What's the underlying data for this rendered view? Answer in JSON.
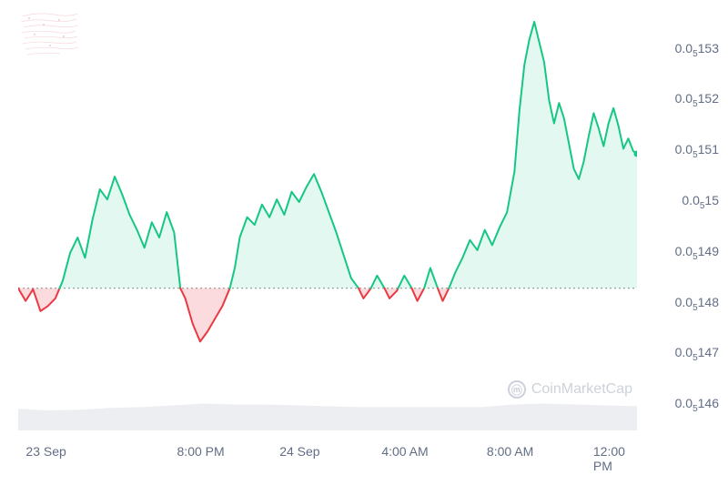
{
  "chart": {
    "type": "area-line",
    "background_color": "#ffffff",
    "above_line_color": "#16c784",
    "above_fill_color": "rgba(22,199,132,0.12)",
    "below_line_color": "#ea3943",
    "below_fill_color": "rgba(234,57,67,0.18)",
    "baseline_color": "#888888",
    "baseline_dash": "2,3",
    "volume_fill_color": "#eceef1",
    "axis_text_color": "#616e85",
    "watermark_color": "#b8bec9",
    "line_width": 2,
    "ylim": [
      145.5,
      153.8
    ],
    "baseline_value": 148.3,
    "y_ticks": [
      {
        "value": 153,
        "label_prefix": "0.0",
        "label_sub": "5",
        "label_suffix": "153"
      },
      {
        "value": 152,
        "label_prefix": "0.0",
        "label_sub": "5",
        "label_suffix": "152"
      },
      {
        "value": 151,
        "label_prefix": "0.0",
        "label_sub": "5",
        "label_suffix": "151"
      },
      {
        "value": 150,
        "label_prefix": "0.0",
        "label_sub": "5",
        "label_suffix": "15"
      },
      {
        "value": 149,
        "label_prefix": "0.0",
        "label_sub": "5",
        "label_suffix": "149"
      },
      {
        "value": 148,
        "label_prefix": "0.0",
        "label_sub": "5",
        "label_suffix": "148"
      },
      {
        "value": 147,
        "label_prefix": "0.0",
        "label_sub": "5",
        "label_suffix": "147"
      },
      {
        "value": 146,
        "label_prefix": "0.0",
        "label_sub": "5",
        "label_suffix": "146"
      }
    ],
    "x_ticks": [
      {
        "t": 0.045,
        "label": "23 Sep"
      },
      {
        "t": 0.295,
        "label": "8:00 PM"
      },
      {
        "t": 0.455,
        "label": "24 Sep"
      },
      {
        "t": 0.625,
        "label": "4:00 AM"
      },
      {
        "t": 0.795,
        "label": "8:00 AM"
      },
      {
        "t": 0.955,
        "label": "12:00 PM"
      }
    ],
    "series": [
      {
        "t": 0.0,
        "v": 148.3
      },
      {
        "t": 0.012,
        "v": 148.05
      },
      {
        "t": 0.024,
        "v": 148.28
      },
      {
        "t": 0.036,
        "v": 147.85
      },
      {
        "t": 0.048,
        "v": 147.95
      },
      {
        "t": 0.06,
        "v": 148.1
      },
      {
        "t": 0.072,
        "v": 148.45
      },
      {
        "t": 0.084,
        "v": 149.0
      },
      {
        "t": 0.096,
        "v": 149.3
      },
      {
        "t": 0.108,
        "v": 148.9
      },
      {
        "t": 0.12,
        "v": 149.65
      },
      {
        "t": 0.132,
        "v": 150.25
      },
      {
        "t": 0.144,
        "v": 150.05
      },
      {
        "t": 0.156,
        "v": 150.5
      },
      {
        "t": 0.168,
        "v": 150.15
      },
      {
        "t": 0.18,
        "v": 149.75
      },
      {
        "t": 0.192,
        "v": 149.45
      },
      {
        "t": 0.204,
        "v": 149.1
      },
      {
        "t": 0.216,
        "v": 149.6
      },
      {
        "t": 0.228,
        "v": 149.3
      },
      {
        "t": 0.24,
        "v": 149.8
      },
      {
        "t": 0.252,
        "v": 149.4
      },
      {
        "t": 0.262,
        "v": 148.3
      },
      {
        "t": 0.27,
        "v": 148.1
      },
      {
        "t": 0.282,
        "v": 147.6
      },
      {
        "t": 0.294,
        "v": 147.25
      },
      {
        "t": 0.306,
        "v": 147.45
      },
      {
        "t": 0.318,
        "v": 147.7
      },
      {
        "t": 0.33,
        "v": 147.95
      },
      {
        "t": 0.342,
        "v": 148.3
      },
      {
        "t": 0.35,
        "v": 148.7
      },
      {
        "t": 0.358,
        "v": 149.3
      },
      {
        "t": 0.37,
        "v": 149.7
      },
      {
        "t": 0.382,
        "v": 149.55
      },
      {
        "t": 0.394,
        "v": 149.95
      },
      {
        "t": 0.406,
        "v": 149.7
      },
      {
        "t": 0.418,
        "v": 150.05
      },
      {
        "t": 0.43,
        "v": 149.75
      },
      {
        "t": 0.442,
        "v": 150.2
      },
      {
        "t": 0.454,
        "v": 150.0
      },
      {
        "t": 0.466,
        "v": 150.3
      },
      {
        "t": 0.478,
        "v": 150.55
      },
      {
        "t": 0.49,
        "v": 150.2
      },
      {
        "t": 0.502,
        "v": 149.8
      },
      {
        "t": 0.514,
        "v": 149.4
      },
      {
        "t": 0.526,
        "v": 148.95
      },
      {
        "t": 0.538,
        "v": 148.5
      },
      {
        "t": 0.55,
        "v": 148.3
      },
      {
        "t": 0.558,
        "v": 148.1
      },
      {
        "t": 0.57,
        "v": 148.3
      },
      {
        "t": 0.58,
        "v": 148.55
      },
      {
        "t": 0.592,
        "v": 148.3
      },
      {
        "t": 0.6,
        "v": 148.1
      },
      {
        "t": 0.612,
        "v": 148.25
      },
      {
        "t": 0.624,
        "v": 148.55
      },
      {
        "t": 0.636,
        "v": 148.3
      },
      {
        "t": 0.645,
        "v": 148.05
      },
      {
        "t": 0.656,
        "v": 148.3
      },
      {
        "t": 0.666,
        "v": 148.7
      },
      {
        "t": 0.678,
        "v": 148.3
      },
      {
        "t": 0.686,
        "v": 148.05
      },
      {
        "t": 0.696,
        "v": 148.3
      },
      {
        "t": 0.706,
        "v": 148.6
      },
      {
        "t": 0.718,
        "v": 148.9
      },
      {
        "t": 0.73,
        "v": 149.25
      },
      {
        "t": 0.742,
        "v": 149.05
      },
      {
        "t": 0.754,
        "v": 149.45
      },
      {
        "t": 0.766,
        "v": 149.15
      },
      {
        "t": 0.778,
        "v": 149.5
      },
      {
        "t": 0.79,
        "v": 149.8
      },
      {
        "t": 0.802,
        "v": 150.6
      },
      {
        "t": 0.81,
        "v": 151.8
      },
      {
        "t": 0.818,
        "v": 152.7
      },
      {
        "t": 0.826,
        "v": 153.2
      },
      {
        "t": 0.834,
        "v": 153.55
      },
      {
        "t": 0.842,
        "v": 153.15
      },
      {
        "t": 0.85,
        "v": 152.75
      },
      {
        "t": 0.858,
        "v": 152.0
      },
      {
        "t": 0.866,
        "v": 151.55
      },
      {
        "t": 0.874,
        "v": 151.95
      },
      {
        "t": 0.882,
        "v": 151.65
      },
      {
        "t": 0.89,
        "v": 151.15
      },
      {
        "t": 0.898,
        "v": 150.65
      },
      {
        "t": 0.906,
        "v": 150.45
      },
      {
        "t": 0.914,
        "v": 150.8
      },
      {
        "t": 0.922,
        "v": 151.3
      },
      {
        "t": 0.93,
        "v": 151.75
      },
      {
        "t": 0.938,
        "v": 151.45
      },
      {
        "t": 0.946,
        "v": 151.1
      },
      {
        "t": 0.954,
        "v": 151.55
      },
      {
        "t": 0.962,
        "v": 151.85
      },
      {
        "t": 0.97,
        "v": 151.5
      },
      {
        "t": 0.978,
        "v": 151.05
      },
      {
        "t": 0.986,
        "v": 151.25
      },
      {
        "t": 0.994,
        "v": 151.0
      },
      {
        "t": 1.0,
        "v": 150.95
      }
    ],
    "volume": [
      {
        "t": 0.0,
        "v": 0.25
      },
      {
        "t": 0.05,
        "v": 0.23
      },
      {
        "t": 0.1,
        "v": 0.24
      },
      {
        "t": 0.15,
        "v": 0.26
      },
      {
        "t": 0.2,
        "v": 0.27
      },
      {
        "t": 0.25,
        "v": 0.29
      },
      {
        "t": 0.3,
        "v": 0.31
      },
      {
        "t": 0.35,
        "v": 0.3
      },
      {
        "t": 0.4,
        "v": 0.3
      },
      {
        "t": 0.45,
        "v": 0.29
      },
      {
        "t": 0.5,
        "v": 0.28
      },
      {
        "t": 0.55,
        "v": 0.27
      },
      {
        "t": 0.6,
        "v": 0.27
      },
      {
        "t": 0.65,
        "v": 0.27
      },
      {
        "t": 0.7,
        "v": 0.27
      },
      {
        "t": 0.75,
        "v": 0.27
      },
      {
        "t": 0.8,
        "v": 0.3
      },
      {
        "t": 0.85,
        "v": 0.31
      },
      {
        "t": 0.9,
        "v": 0.3
      },
      {
        "t": 0.95,
        "v": 0.29
      },
      {
        "t": 1.0,
        "v": 0.28
      }
    ]
  },
  "watermark": {
    "text": "CoinMarketCap",
    "icon_letter": "ⓜ"
  }
}
